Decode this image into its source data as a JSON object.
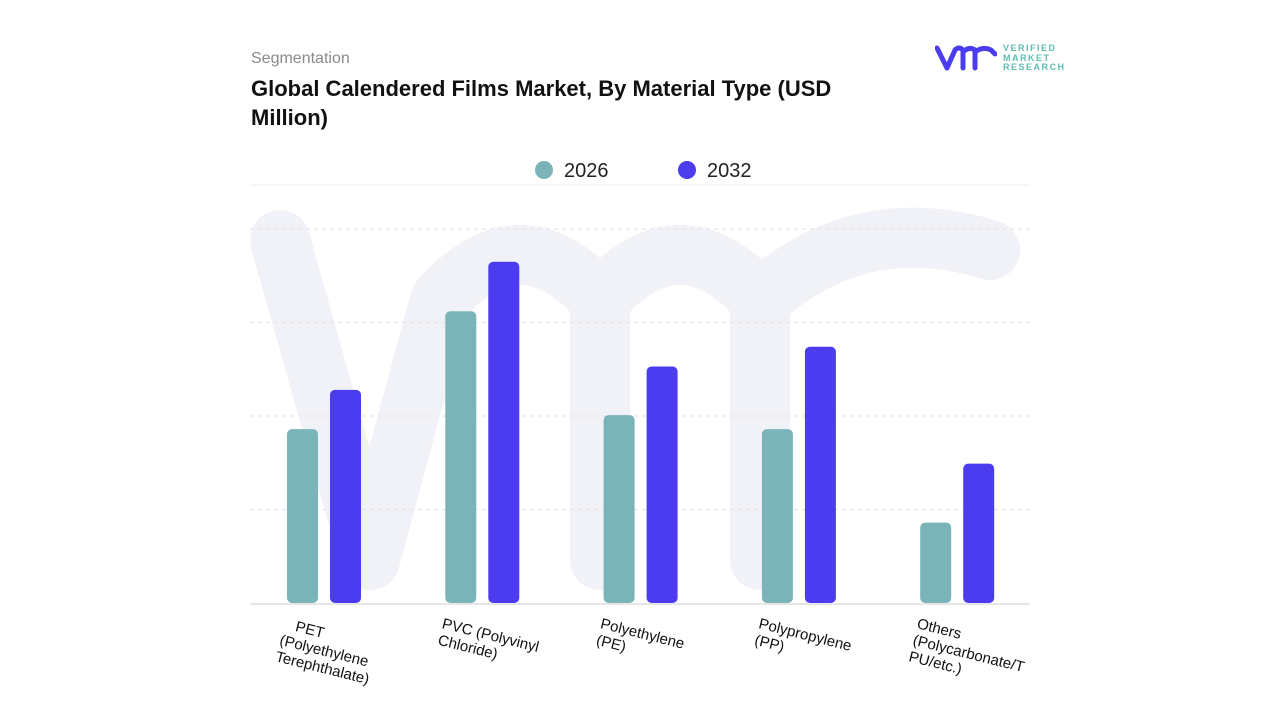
{
  "header": {
    "section": "Segmentation",
    "title": "Global Calendered Films Market, By Material Type (USD Million)"
  },
  "logo": {
    "lines": [
      "VERIFIED",
      "MARKET",
      "RESEARCH"
    ],
    "brand_color": "#4b3cf0",
    "text_color": "#5fbdb4"
  },
  "chart_data": {
    "type": "bar",
    "title": "Global Calendered Films Market, By Material Type (USD Million)",
    "xlabel": "",
    "ylabel": "",
    "y_tick_labels_shown": false,
    "grid": true,
    "legend_position": "top",
    "ylim": [
      0,
      4
    ],
    "categories": [
      "PET (Polyethylene Terephthalate)",
      "PVC (Polyvinyl Chloride)",
      "Polyethylene (PE)",
      "Polypropylene (PP)",
      "Others (Polycarbonate/TPU/etc.)"
    ],
    "category_label_lines": [
      [
        "PET",
        "(Polyethylene",
        "Terephthalate)"
      ],
      [
        "PVC (Polyvinyl",
        "Chloride)"
      ],
      [
        "Polyethylene",
        "(PE)"
      ],
      [
        "Polypropylene",
        "(PP)"
      ],
      [
        "Others",
        "(Polycarbonate/T",
        "PU/etc.)"
      ]
    ],
    "series": [
      {
        "name": "2026",
        "color": "#7ab4b8",
        "values": [
          1.86,
          3.12,
          2.01,
          1.86,
          0.86
        ]
      },
      {
        "name": "2032",
        "color": "#4b3cf0",
        "values": [
          2.28,
          3.65,
          2.53,
          2.74,
          1.49
        ]
      }
    ]
  }
}
